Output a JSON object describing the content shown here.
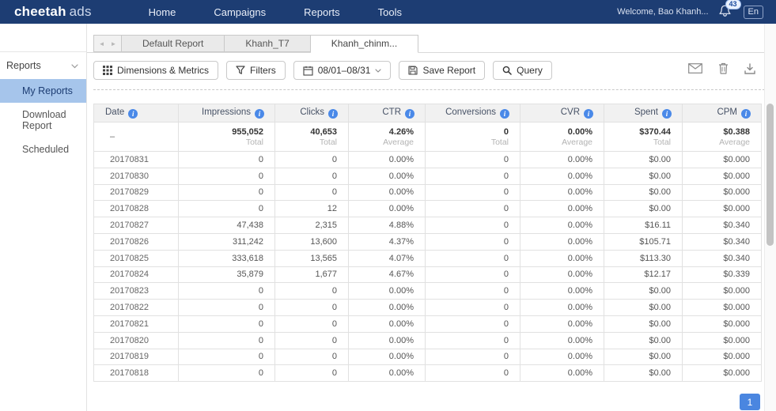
{
  "navbar": {
    "brand_bold": "cheetah",
    "brand_light": "ads",
    "items": [
      "Home",
      "Campaigns",
      "Reports",
      "Tools"
    ],
    "welcome": "Welcome,  Bao Khanh...",
    "notification_count": "43",
    "language": "En"
  },
  "sidebar": {
    "section_label": "Reports",
    "items": [
      {
        "label": "My Reports",
        "active": true
      },
      {
        "label": "Download Report",
        "active": false
      },
      {
        "label": "Scheduled",
        "active": false
      }
    ]
  },
  "tab_nav": {
    "prev": "◄",
    "next": "►"
  },
  "tabs": [
    {
      "label": "Default Report",
      "active": false
    },
    {
      "label": "Khanh_T7",
      "active": false
    },
    {
      "label": "Khanh_chinm...",
      "active": true
    }
  ],
  "toolbar": {
    "dimensions_metrics_label": "Dimensions & Metrics",
    "filters_label": "Filters",
    "date_range_label": "08/01–08/31",
    "save_report_label": "Save Report",
    "query_label": "Query"
  },
  "icons": {
    "dimensions_metrics": "grid-icon",
    "filters": "funnel-icon",
    "date_range": "calendar-icon",
    "save_report": "floppy-disk-icon",
    "query": "magnifier-icon",
    "email": "envelope-icon",
    "delete": "trash-icon",
    "download": "download-icon",
    "notifications": "bell-icon",
    "column_info": "info-icon"
  },
  "table": {
    "columns": [
      "Date",
      "Impressions",
      "Clicks",
      "CTR",
      "Conversions",
      "CVR",
      "Spent",
      "CPM"
    ],
    "total_row": {
      "date": "–",
      "values": [
        {
          "value": "955,052",
          "label": "Total"
        },
        {
          "value": "40,653",
          "label": "Total"
        },
        {
          "value": "4.26%",
          "label": "Average"
        },
        {
          "value": "0",
          "label": "Total"
        },
        {
          "value": "0.00%",
          "label": "Average"
        },
        {
          "value": "$370.44",
          "label": "Total"
        },
        {
          "value": "$0.388",
          "label": "Average"
        }
      ]
    },
    "rows": [
      [
        "20170831",
        "0",
        "0",
        "0.00%",
        "0",
        "0.00%",
        "$0.00",
        "$0.000"
      ],
      [
        "20170830",
        "0",
        "0",
        "0.00%",
        "0",
        "0.00%",
        "$0.00",
        "$0.000"
      ],
      [
        "20170829",
        "0",
        "0",
        "0.00%",
        "0",
        "0.00%",
        "$0.00",
        "$0.000"
      ],
      [
        "20170828",
        "0",
        "12",
        "0.00%",
        "0",
        "0.00%",
        "$0.00",
        "$0.000"
      ],
      [
        "20170827",
        "47,438",
        "2,315",
        "4.88%",
        "0",
        "0.00%",
        "$16.11",
        "$0.340"
      ],
      [
        "20170826",
        "311,242",
        "13,600",
        "4.37%",
        "0",
        "0.00%",
        "$105.71",
        "$0.340"
      ],
      [
        "20170825",
        "333,618",
        "13,565",
        "4.07%",
        "0",
        "0.00%",
        "$113.30",
        "$0.340"
      ],
      [
        "20170824",
        "35,879",
        "1,677",
        "4.67%",
        "0",
        "0.00%",
        "$12.17",
        "$0.339"
      ],
      [
        "20170823",
        "0",
        "0",
        "0.00%",
        "0",
        "0.00%",
        "$0.00",
        "$0.000"
      ],
      [
        "20170822",
        "0",
        "0",
        "0.00%",
        "0",
        "0.00%",
        "$0.00",
        "$0.000"
      ],
      [
        "20170821",
        "0",
        "0",
        "0.00%",
        "0",
        "0.00%",
        "$0.00",
        "$0.000"
      ],
      [
        "20170820",
        "0",
        "0",
        "0.00%",
        "0",
        "0.00%",
        "$0.00",
        "$0.000"
      ],
      [
        "20170819",
        "0",
        "0",
        "0.00%",
        "0",
        "0.00%",
        "$0.00",
        "$0.000"
      ],
      [
        "20170818",
        "0",
        "0",
        "0.00%",
        "0",
        "0.00%",
        "$0.00",
        "$0.000"
      ]
    ]
  },
  "pagination": {
    "current_page": "1"
  },
  "colors": {
    "navbar_bg": "#1d3d73",
    "sidebar_active_bg": "#a6c5eb",
    "accent_blue": "#4a86e0",
    "info_icon_blue": "#4a89e8"
  }
}
